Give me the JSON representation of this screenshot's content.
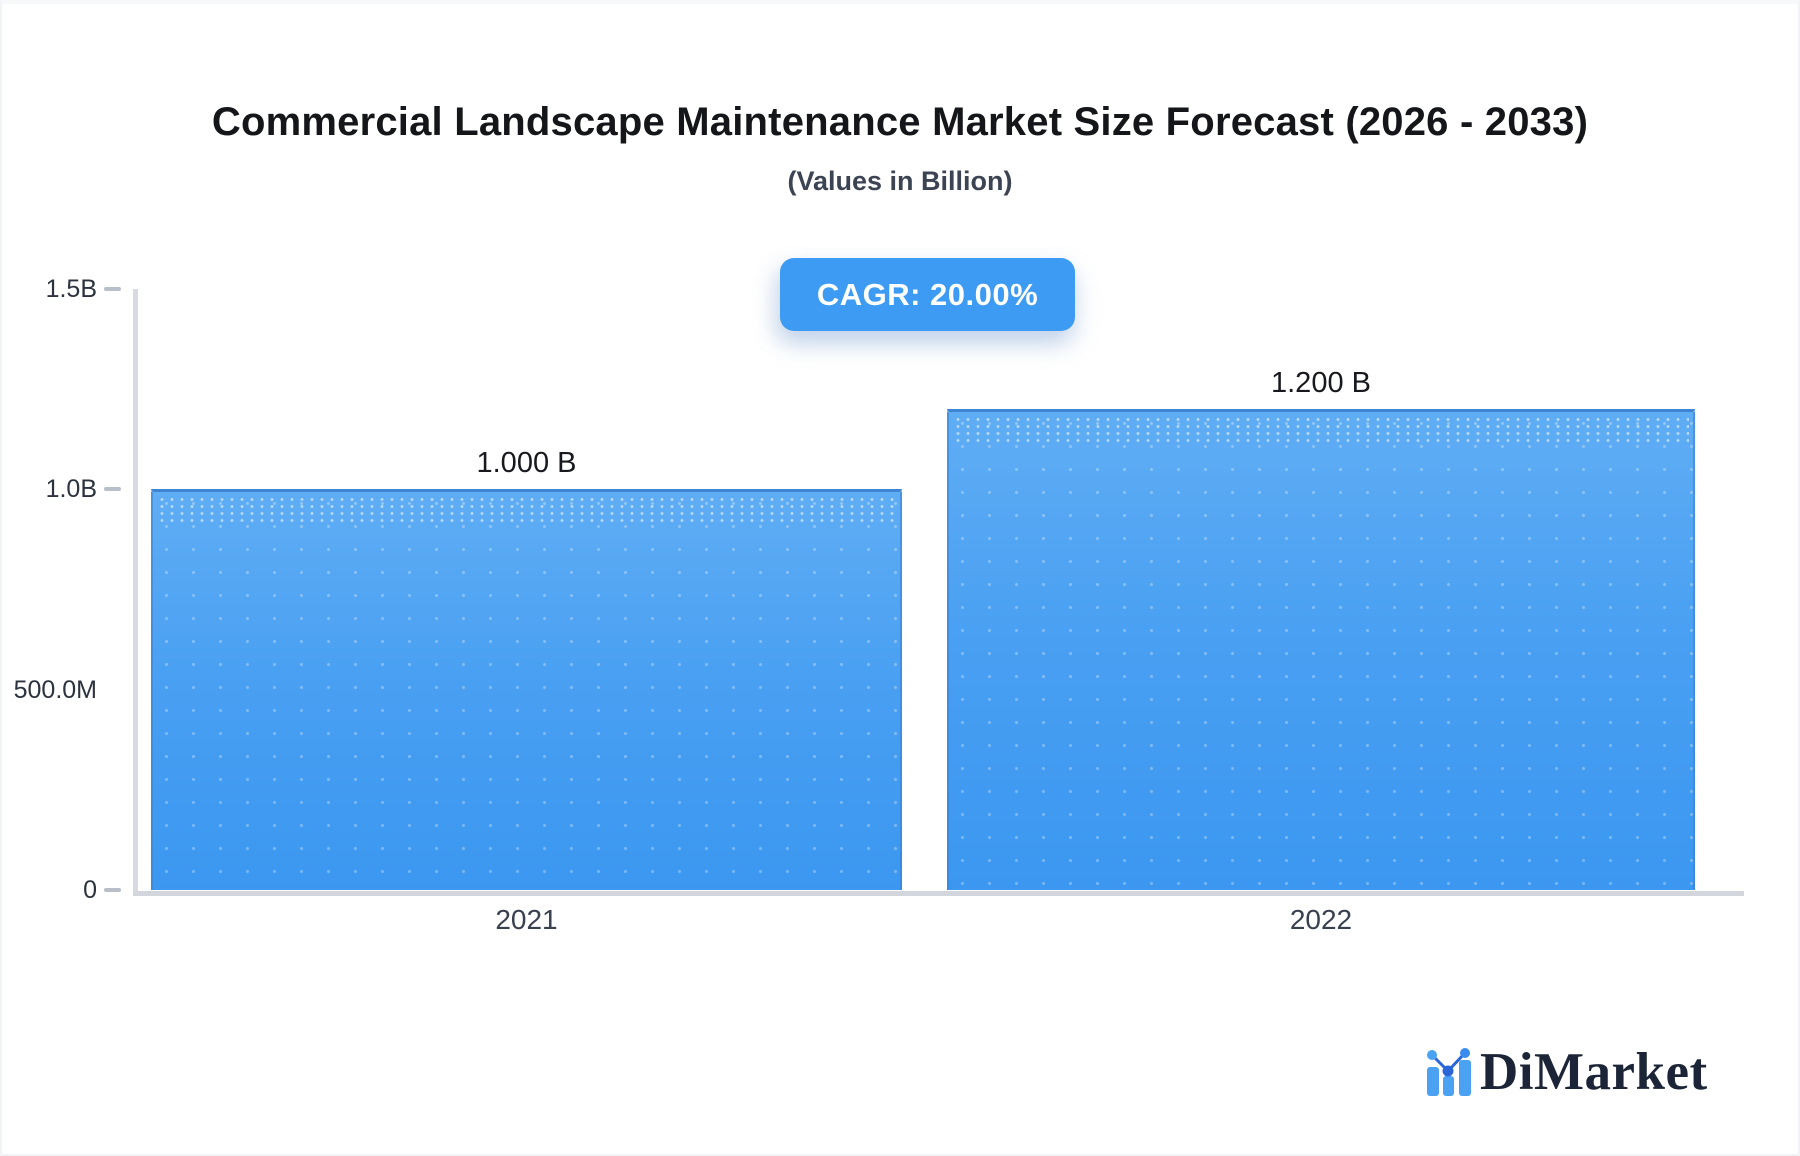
{
  "header": {
    "title": "Commercial Landscape Maintenance Market Size Forecast (2026 - 2033)",
    "subtitle": "(Values in Billion)",
    "cagr_badge": "CAGR: 20.00%"
  },
  "chart_data": {
    "type": "bar",
    "title": "Commercial Landscape Maintenance Market Size Forecast (2026 - 2033)",
    "subtitle": "(Values in Billion)",
    "categories": [
      "2021",
      "2022"
    ],
    "values": [
      1.0,
      1.2
    ],
    "value_labels": [
      "1.000 B",
      "1.200 B"
    ],
    "unit": "Billion",
    "cagr": "20.00%",
    "xlabel": "",
    "ylabel": "",
    "ylim": [
      0,
      1.5
    ],
    "grid": false,
    "legend": "none",
    "yticks": [
      {
        "value": 1.5,
        "label": "1.5B",
        "tick": true
      },
      {
        "value": 1.0,
        "label": "1.0B",
        "tick": true
      },
      {
        "value": 0.5,
        "label": "500.0M",
        "tick": false
      },
      {
        "value": 0.0,
        "label": "0",
        "tick": true
      }
    ],
    "bar_color_top": "#5fadf4",
    "bar_color_bottom": "#3b97f0",
    "bar_border_color": "#3d85d2"
  },
  "branding": {
    "logo_text": "DiMarket",
    "logo_icon": "bar-chart-trend-icon",
    "logo_text_color": "#1c2537",
    "icon_light_blue": "#4ba2f2",
    "icon_dark_blue": "#2b66d9"
  },
  "colors": {
    "accent_blue": "#3d9bf3",
    "axis_line": "#d7dae0",
    "tick_color": "#b9bfc9",
    "title_text": "#141619",
    "muted_text": "#3c4454"
  }
}
